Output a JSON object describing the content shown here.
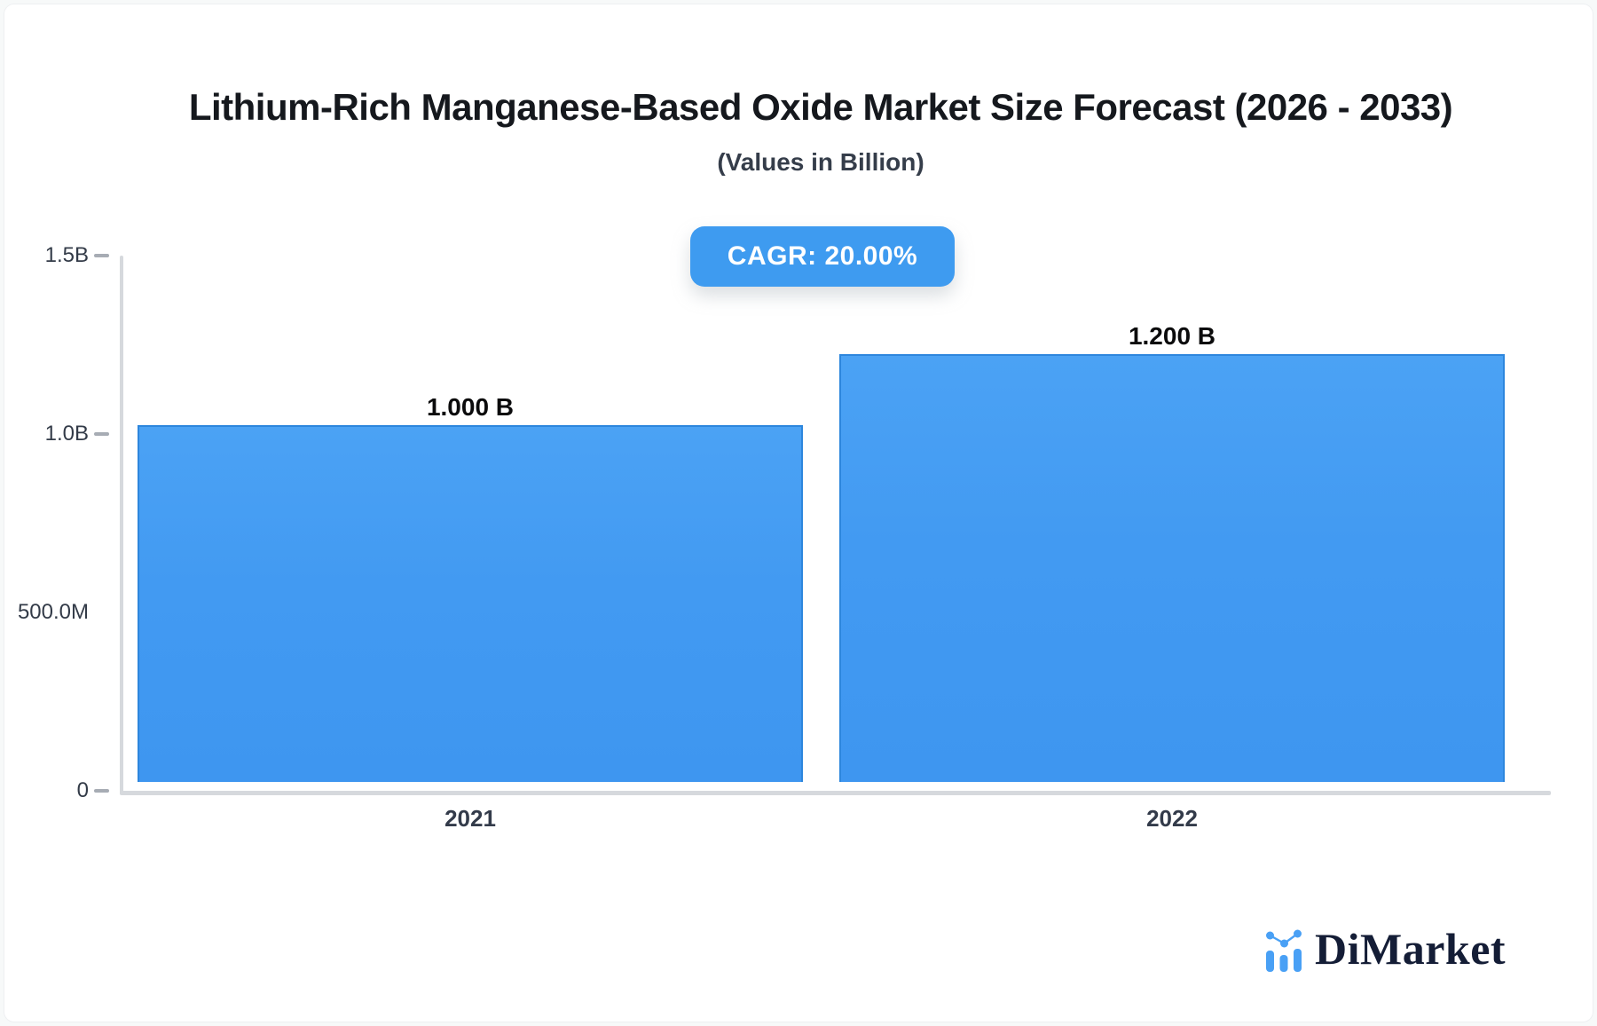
{
  "header": {
    "title": "Lithium-Rich Manganese-Based Oxide Market Size Forecast (2026 - 2033)",
    "subtitle": "(Values in Billion)"
  },
  "badge": {
    "label": "CAGR: 20.00%",
    "background": "#3e9bf0",
    "text_color": "#ffffff"
  },
  "chart_data": {
    "type": "bar",
    "title": "Lithium-Rich Manganese-Based Oxide Market Size Forecast (2026 - 2033)",
    "subtitle": "(Values in Billion)",
    "unit": "Billion",
    "cagr_percent": "20.00%",
    "categories": [
      "2021",
      "2022"
    ],
    "values": [
      1.0,
      1.2
    ],
    "value_labels": [
      "1.000 B",
      "1.200 B"
    ],
    "ylim": [
      0,
      1.5
    ],
    "yticks": [
      {
        "label": "1.5B",
        "value": 1.5,
        "tick": true
      },
      {
        "label": "1.0B",
        "value": 1.0,
        "tick": true
      },
      {
        "label": "500.0M",
        "value": 0.5,
        "tick": false
      },
      {
        "label": "0",
        "value": 0,
        "tick": true
      }
    ],
    "bar_color": "#429af2",
    "bar_border_color": "#2d86dd",
    "axis_color": "#d6d9dd",
    "grid": false,
    "legend": false
  },
  "logo": {
    "text": "DiMarket",
    "text_color": "#141d36",
    "icon": "bar-chart-logo-icon",
    "icon_color": "#49a0f5"
  }
}
